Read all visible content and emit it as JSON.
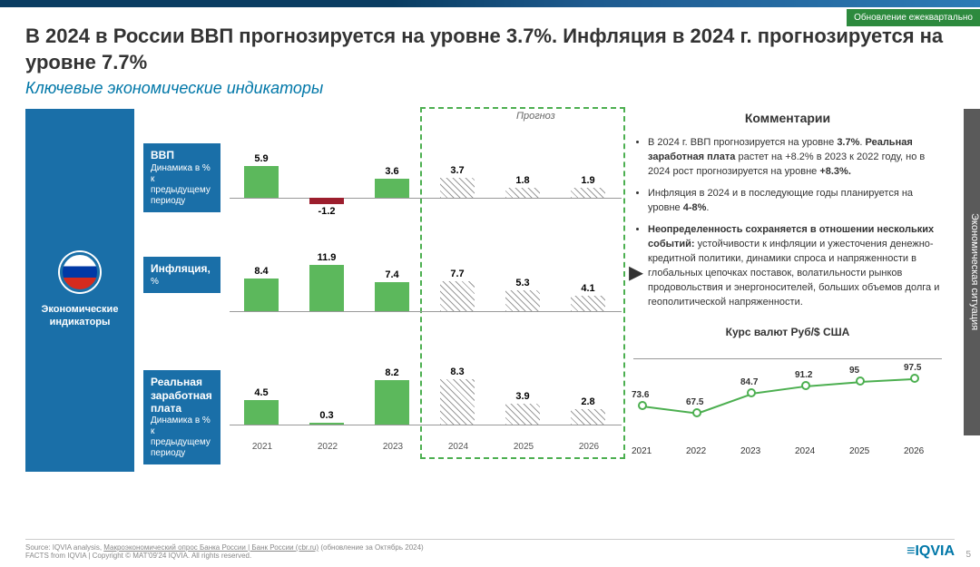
{
  "badge": "Обновление ежеквартально",
  "title": "В 2024 в России ВВП прогнозируется на уровне 3.7%. Инфляция в 2024 г. прогнозируется на уровне 7.7%",
  "subtitle": "Ключевые экономические индикаторы",
  "sideTab": "Экономическая ситуация",
  "leftLabel": "Экономические индикаторы",
  "forecast": "Прогноз",
  "years": [
    "2021",
    "2022",
    "2023",
    "2024",
    "2025",
    "2026"
  ],
  "rows": [
    {
      "title": "ВВП",
      "sub": "Динамика в % к предыдущему периоду",
      "vals": [
        5.9,
        -1.2,
        3.6,
        3.7,
        1.8,
        1.9
      ],
      "scale": 10
    },
    {
      "title": "Инфляция,",
      "sub": "%",
      "vals": [
        8.4,
        11.9,
        7.4,
        7.7,
        5.3,
        4.1
      ],
      "scale": 14
    },
    {
      "title": "Реальная заработная плата",
      "sub": "Динамика в % к предыдущему периоду",
      "vals": [
        4.5,
        0.3,
        8.2,
        8.3,
        3.9,
        2.8
      ],
      "scale": 10
    }
  ],
  "colors": {
    "pos": "#5cb85c",
    "neg": "#9c1e2d",
    "hatch": "#999"
  },
  "commTitle": "Комментарии",
  "comments": [
    "В 2024 г. ВВП прогнозируется на уровне <b>3.7%</b>. <b>Реальная заработная плата</b> растет на +8.2% в 2023 к 2022 году, но в 2024 рост прогнозируется на уровне <b>+8.3%.</b>",
    "Инфляция в 2024 и в последующие годы планируется на уровне <b>4-8%</b>.",
    "<b>Неопределенность сохраняется в отношении нескольких событий:</b> устойчивости к инфляции и ужесточения денежно-кредитной политики, динамики спроса и напряженности в глобальных цепочках поставок, волатильности рынков продовольствия и энергоносителей, больших объемов долга и геополитической напряженности."
  ],
  "fxTitle": "Курс валют Руб/$ США",
  "fx": {
    "years": [
      "2021",
      "2022",
      "2023",
      "2024",
      "2025",
      "2026"
    ],
    "vals": [
      73.6,
      67.5,
      84.7,
      91.2,
      95,
      97.5
    ],
    "min": 60,
    "max": 100
  },
  "source": "Source: IQVIA analysis, <u>Макроэкономический опрос Банка России | Банк России (cbr.ru)</u> (обновление за Октябрь 2024)",
  "copyright": "FACTS from IQVIA | Copyright © MAT'09'24 IQVIA. All rights reserved.",
  "page": "5"
}
